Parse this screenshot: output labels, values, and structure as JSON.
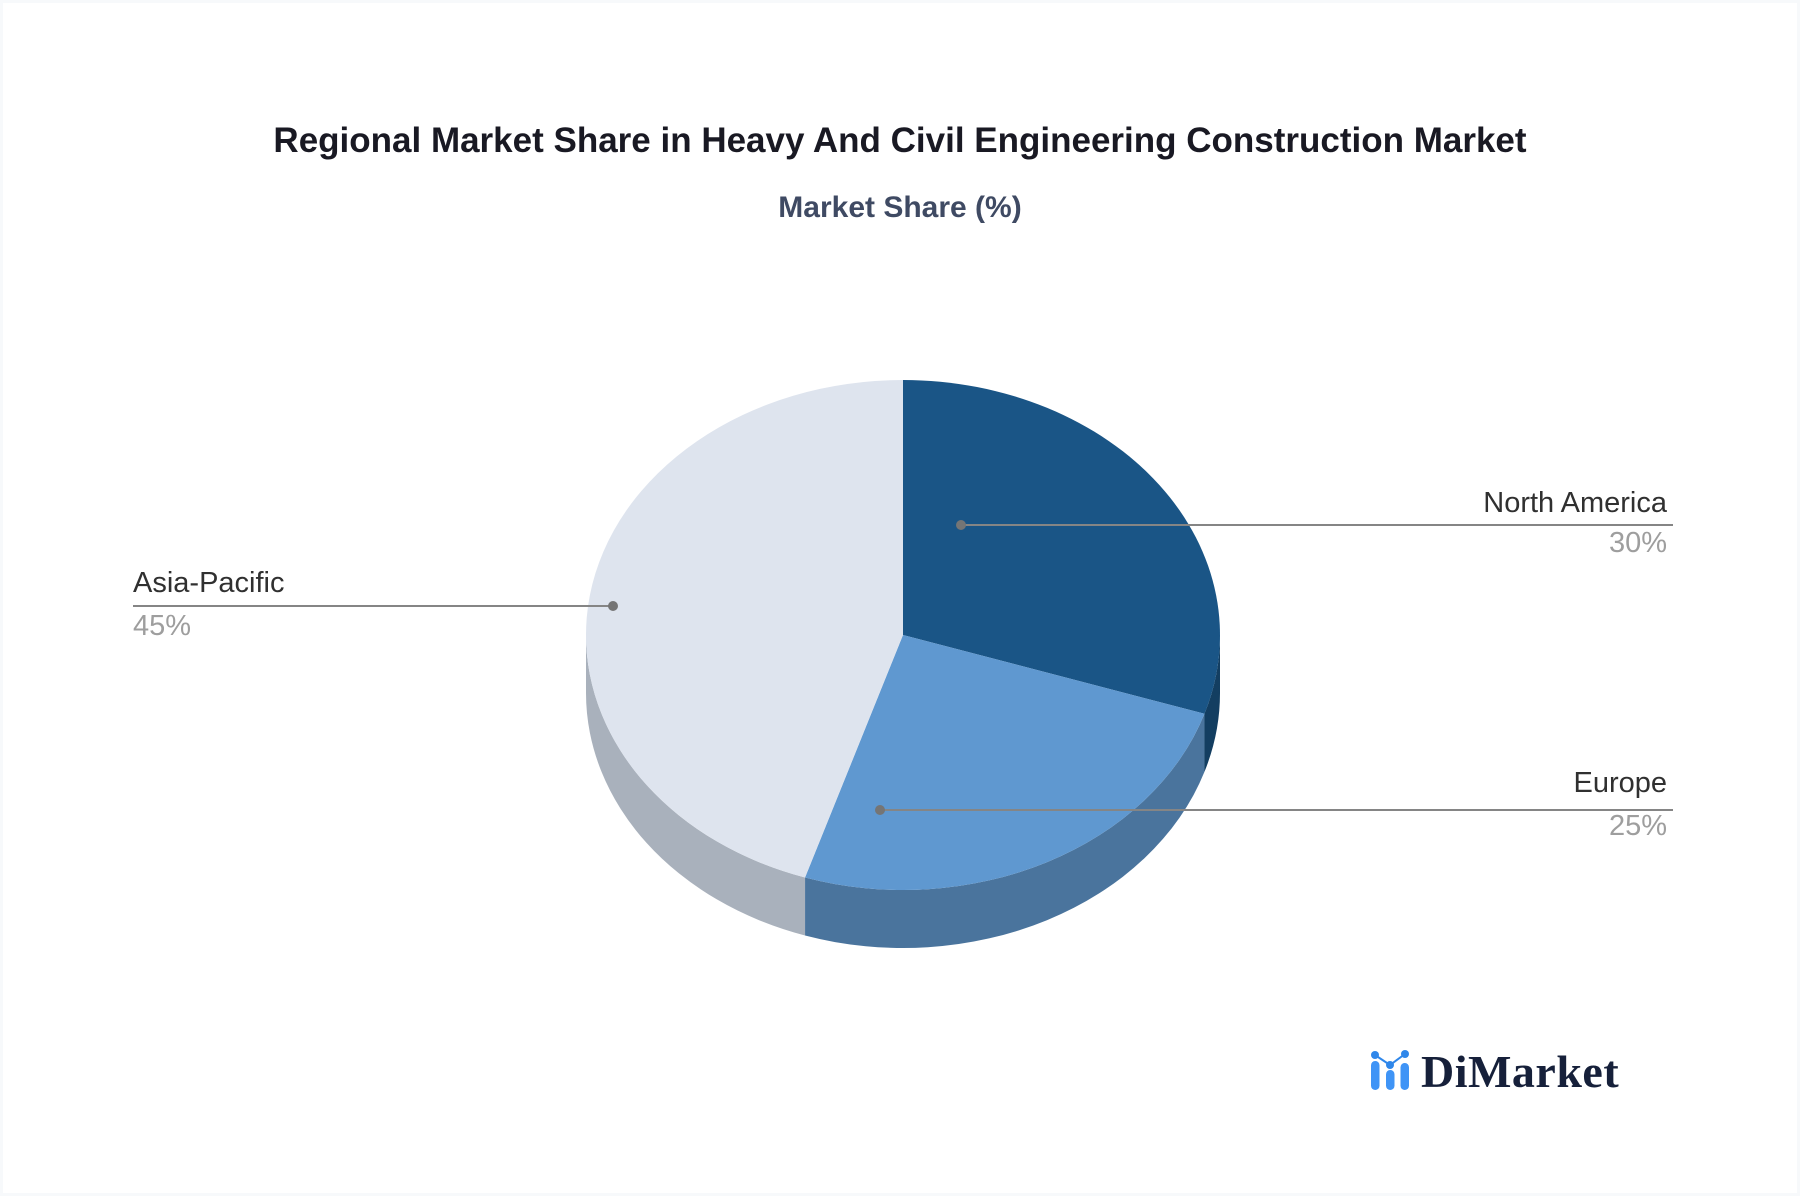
{
  "header": {
    "title": "Regional Market Share in Heavy And Civil Engineering Construction Market",
    "subtitle": "Market Share (%)"
  },
  "chart_data": {
    "type": "pie",
    "title": "Regional Market Share in Heavy And Civil Engineering Construction Market",
    "subtitle": "Market Share (%)",
    "unit": "%",
    "effect_3d": true,
    "start_angle_deg": 0,
    "direction": "clockwise",
    "slices": [
      {
        "label": "North America",
        "value": 30,
        "pct_label": "30%",
        "color": "#1a5586",
        "side_color": "#133e61"
      },
      {
        "label": "Europe",
        "value": 25,
        "pct_label": "25%",
        "color": "#5f98d0",
        "side_color": "#4a749d"
      },
      {
        "label": "Asia-Pacific",
        "value": 45,
        "pct_label": "45%",
        "color": "#dee4ee",
        "side_color": "#a9b1bc"
      }
    ],
    "legend_position": "none",
    "annotation_style": {
      "line_color": "#858585",
      "dot_color": "#757575",
      "label_color": "#303030",
      "pct_color": "#9e9e9e"
    }
  },
  "logo": {
    "text": "DiMarket",
    "icon": "bar-line-chart-icon",
    "icon_color": "#3f94f6",
    "dot_color": "#2f87ea",
    "text_color": "#16203a"
  }
}
